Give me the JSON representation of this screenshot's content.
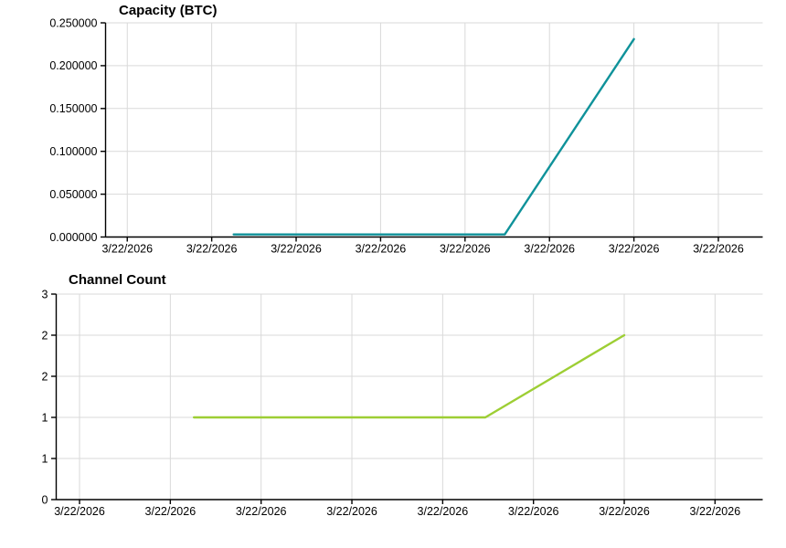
{
  "colors": {
    "background": "#ffffff",
    "grid": "#d9d9d9",
    "axis": "#000000",
    "text": "#000000",
    "capacity_line": "#0f929a",
    "channel_line": "#9dce34"
  },
  "chart_data": [
    {
      "type": "line",
      "title": "Capacity (BTC)",
      "grid": true,
      "legend": null,
      "x_axis": {
        "xlim": [
          -0.257,
          7.525
        ],
        "tick_positions": [
          0,
          1,
          2,
          3,
          4,
          5,
          6,
          7
        ],
        "tick_labels": [
          "3/22/2026",
          "3/22/2026",
          "3/22/2026",
          "3/22/2026",
          "3/22/2026",
          "3/22/2026",
          "3/22/2026",
          "3/22/2026"
        ]
      },
      "y_axis": {
        "ylim": [
          0,
          0.25
        ],
        "ticks": [
          {
            "value": 0.25,
            "label": "0.250000"
          },
          {
            "value": 0.2,
            "label": "0.200000"
          },
          {
            "value": 0.15,
            "label": "0.150000"
          },
          {
            "value": 0.1,
            "label": "0.100000"
          },
          {
            "value": 0.05,
            "label": "0.050000"
          },
          {
            "value": 0.0,
            "label": "0.000000"
          }
        ]
      },
      "series": [
        {
          "name": "capacity-btc",
          "color": "#0f929a",
          "points": [
            {
              "x": 1.26,
              "y": 0.003
            },
            {
              "x": 4.47,
              "y": 0.003
            },
            {
              "x": 6.0,
              "y": 0.231
            }
          ]
        }
      ]
    },
    {
      "type": "line",
      "title": "Channel Count",
      "grid": true,
      "legend": null,
      "x_axis": {
        "xlim": [
          -0.257,
          7.525
        ],
        "tick_positions": [
          0,
          1,
          2,
          3,
          4,
          5,
          6,
          7
        ],
        "tick_labels": [
          "3/22/2026",
          "3/22/2026",
          "3/22/2026",
          "3/22/2026",
          "3/22/2026",
          "3/22/2026",
          "3/22/2026",
          "3/22/2026"
        ]
      },
      "y_axis": {
        "ylim": [
          0,
          2.5
        ],
        "ticks": [
          {
            "value": 2.5,
            "label": "3"
          },
          {
            "value": 2.0,
            "label": "2"
          },
          {
            "value": 1.5,
            "label": "2"
          },
          {
            "value": 1.0,
            "label": "1"
          },
          {
            "value": 0.5,
            "label": "1"
          },
          {
            "value": 0.0,
            "label": "0"
          }
        ]
      },
      "series": [
        {
          "name": "channel-count",
          "color": "#9dce34",
          "points": [
            {
              "x": 1.26,
              "y": 1
            },
            {
              "x": 4.47,
              "y": 1
            },
            {
              "x": 6.0,
              "y": 2
            }
          ]
        }
      ]
    }
  ]
}
